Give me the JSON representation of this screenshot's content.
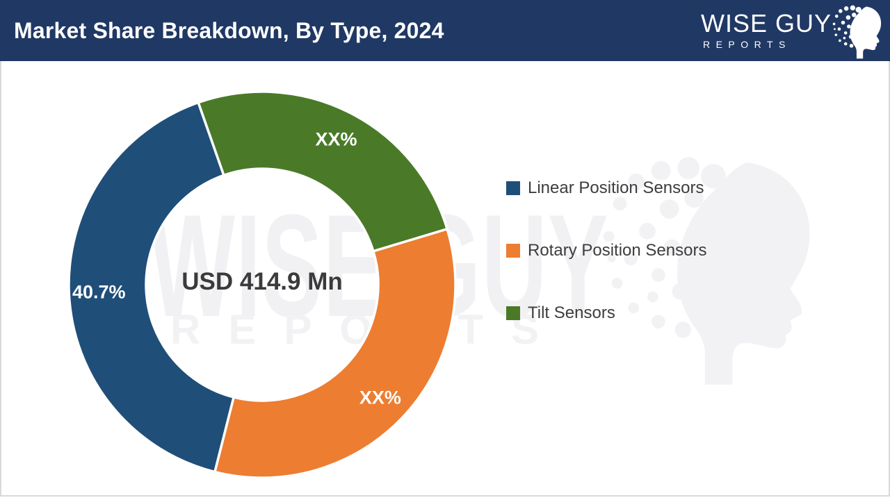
{
  "header": {
    "title": "Market Share Breakdown, By Type, 2024",
    "background_color": "#203864"
  },
  "brand": {
    "name": "WISE GUY",
    "tagline": "REPORTS"
  },
  "watermark": {
    "line1": "WISE GUY",
    "line2": "REPORTS"
  },
  "chart_data": {
    "type": "pie",
    "subtype": "donut",
    "title": "Market Share Breakdown, By Type, 2024",
    "center_label": "USD 414.9 Mn",
    "start_angle_deg": 109.3,
    "direction": "clockwise",
    "segments": [
      {
        "name": "Tilt Sensors",
        "label": "XX%",
        "value_pct": 25.7,
        "color": "#4A7A28"
      },
      {
        "name": "Rotary Position Sensors",
        "label": "XX%",
        "value_pct": 33.6,
        "color": "#ED7D31"
      },
      {
        "name": "Linear Position Sensors",
        "label": "40.7%",
        "value_pct": 40.7,
        "color": "#1F4E79"
      }
    ],
    "legend": {
      "position": "right",
      "items": [
        {
          "label": "Linear Position Sensors",
          "color": "#1F4E79"
        },
        {
          "label": "Rotary Position Sensors",
          "color": "#ED7D31"
        },
        {
          "label": "Tilt Sensors",
          "color": "#4A7A28"
        }
      ]
    }
  }
}
